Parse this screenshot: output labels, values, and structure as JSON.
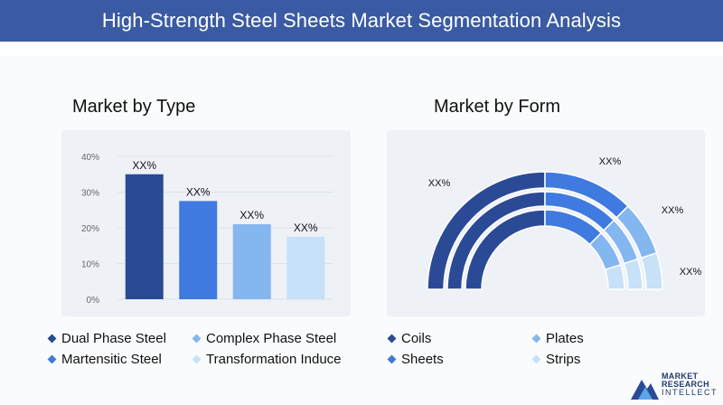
{
  "header": {
    "title": "High-Strength Steel Sheets Market Segmentation Analysis"
  },
  "colors": {
    "header_bg": "#3a5ba3",
    "series": [
      "#2b4a96",
      "#3f7ae0",
      "#84b6f0",
      "#c6e1f8"
    ]
  },
  "left": {
    "title": "Market by Type"
  },
  "right": {
    "title": "Market by Form"
  },
  "chart_data": [
    {
      "type": "bar",
      "categories": [
        "Dual Phase Steel",
        "Martensitic Steel",
        "Complex Phase Steel",
        "Transformation Induce"
      ],
      "values": [
        35,
        27.5,
        21,
        17.5
      ],
      "data_labels": [
        "XX%",
        "XX%",
        "XX%",
        "XX%"
      ],
      "yticks": [
        "0%",
        "10%",
        "20%",
        "30%",
        "40%"
      ],
      "ylim": [
        0,
        40
      ],
      "grid": true,
      "legend": [
        "Dual Phase Steel",
        "Complex Phase Steel",
        "Martensitic Steel",
        "Transformation Induce"
      ],
      "legend_placement": "bottom"
    },
    {
      "type": "pie",
      "subtype": "semi-donut",
      "categories": [
        "Coils",
        "Sheets",
        "Plates",
        "Strips"
      ],
      "values": [
        50,
        25,
        15,
        10
      ],
      "data_labels": [
        "XX%",
        "XX%",
        "XX%",
        "XX%"
      ],
      "legend": [
        "Coils",
        "Plates",
        "Sheets",
        "Strips"
      ],
      "legend_placement": "bottom"
    }
  ],
  "logo": {
    "line1": "MARKET",
    "line2": "RESEARCH",
    "line3": "INTELLECT"
  }
}
